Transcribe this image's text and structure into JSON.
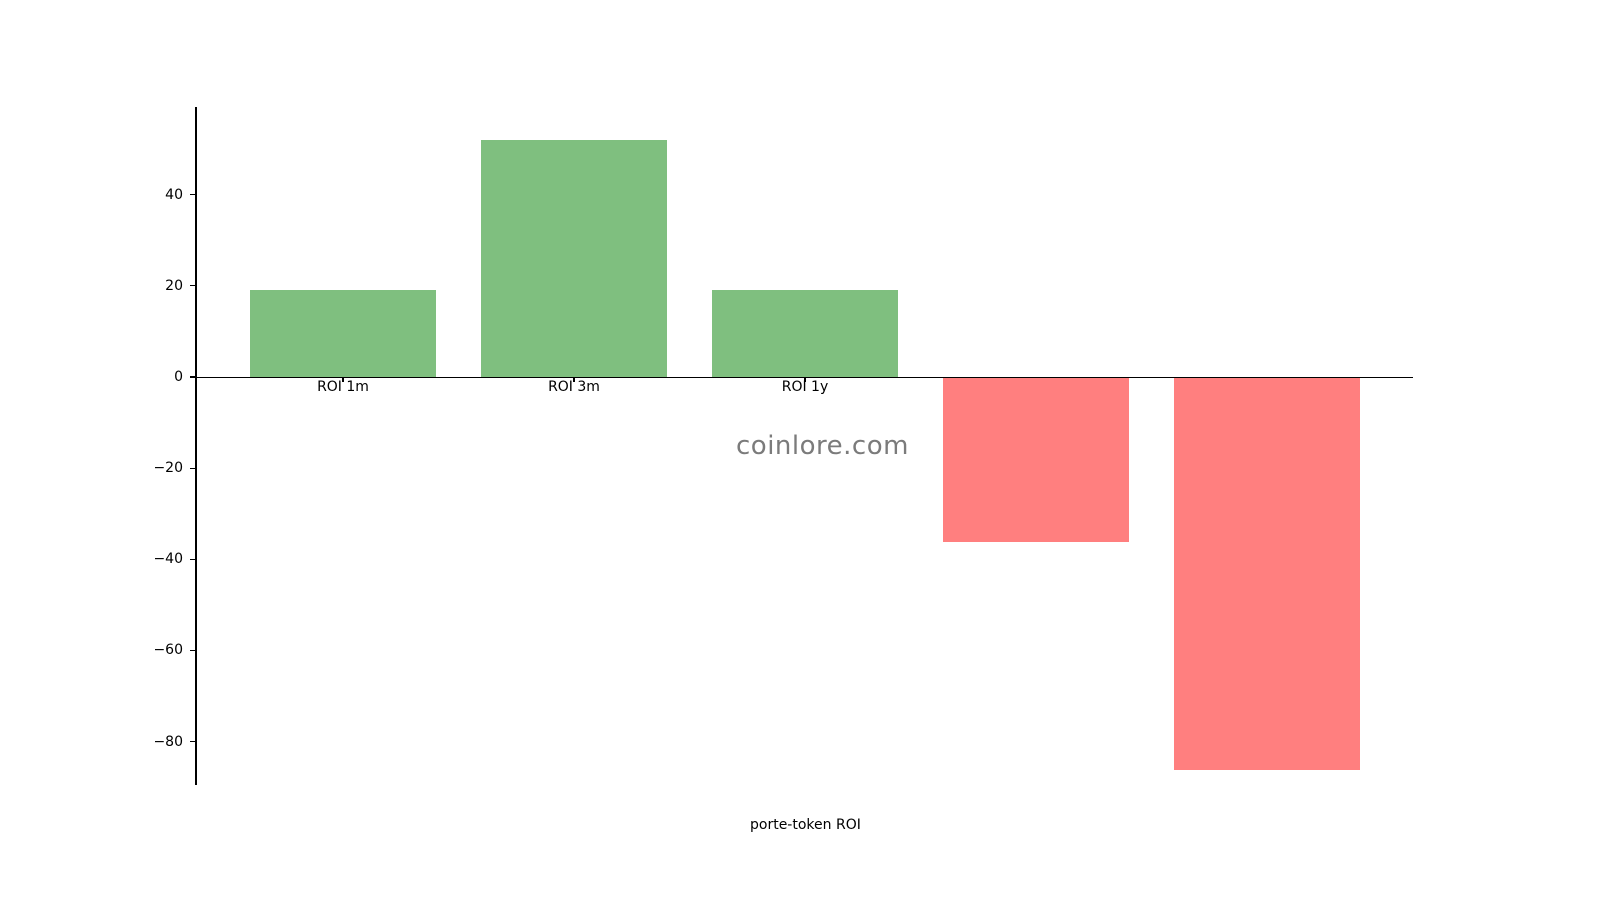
{
  "figure": {
    "background": "#ffffff"
  },
  "chart_data": {
    "type": "bar",
    "title": "porte-token ROI",
    "xlabel": "porte-token ROI",
    "ylabel": "",
    "watermark": "coinlore.com",
    "categories": [
      "ROI 1m",
      "ROI 3m",
      "ROI 1y",
      "",
      ""
    ],
    "values": [
      19,
      52,
      19,
      -36,
      -86
    ],
    "bar_colors": [
      "#7fbf7f",
      "#7fbf7f",
      "#7fbf7f",
      "#ff7f7f",
      "#ff7f7f"
    ],
    "positive_color": "#7fbf7f",
    "negative_color": "#ff7f7f",
    "yticks": [
      40,
      20,
      0,
      -20,
      -40,
      -60,
      -80
    ],
    "ytick_labels": [
      "40",
      "20",
      "0",
      "−20",
      "−40",
      "−60",
      "−80"
    ],
    "ylim": [
      -90,
      59
    ],
    "grid": false,
    "legend": null,
    "axis_color": "#000000",
    "watermark_color": "#7b7b7b"
  }
}
